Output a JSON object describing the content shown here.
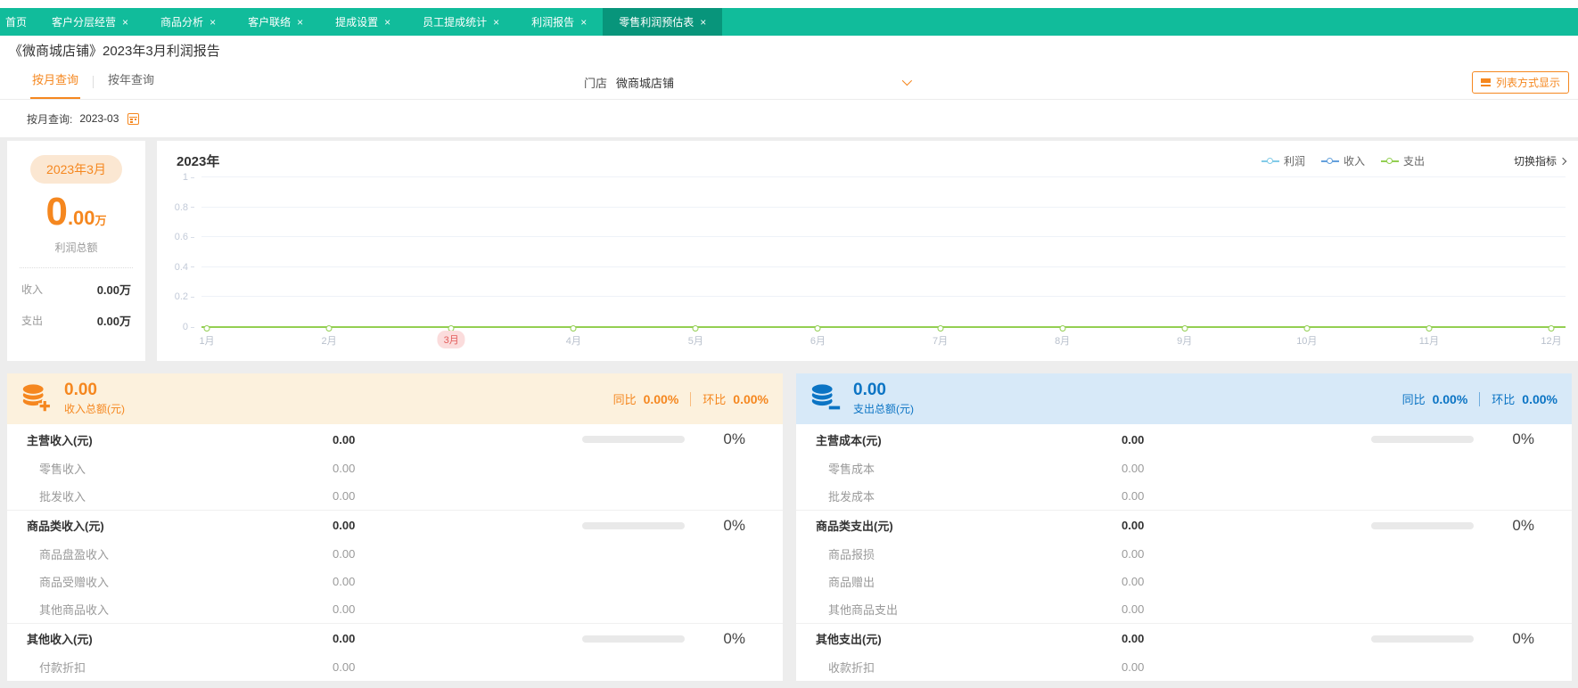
{
  "colors": {
    "teal": "#11bc9b",
    "teal_dark": "#08957b",
    "orange": "#f5871f",
    "blue": "#0b74c4",
    "green_line": "#93cf52",
    "red_month": "#e35d5b",
    "red_month_bg": "#fbdcdc",
    "income_band_bg": "#fcf1dd",
    "expense_band_bg": "#d7e9f8",
    "pill_bg": "#fbe7d2"
  },
  "nav": {
    "tabs": [
      {
        "label": "首页",
        "closable": false,
        "active": false
      },
      {
        "label": "客户分层经营",
        "closable": true,
        "active": false
      },
      {
        "label": "商品分析",
        "closable": true,
        "active": false
      },
      {
        "label": "客户联络",
        "closable": true,
        "active": false
      },
      {
        "label": "提成设置",
        "closable": true,
        "active": false
      },
      {
        "label": "员工提成统计",
        "closable": true,
        "active": false
      },
      {
        "label": "利润报告",
        "closable": true,
        "active": false
      },
      {
        "label": "零售利润预估表",
        "closable": true,
        "active": true
      }
    ]
  },
  "header": {
    "title": "《微商城店铺》2023年3月利润报告"
  },
  "filters": {
    "tabs": [
      {
        "label": "按月查询",
        "active": true
      },
      {
        "label": "按年查询",
        "active": false
      }
    ],
    "store_label": "门店",
    "store_value": "微商城店铺",
    "list_view_button": "列表方式显示",
    "date_label": "按月查询:",
    "date_value": "2023-03"
  },
  "summary_card": {
    "period": "2023年3月",
    "profit_int": "0",
    "profit_dec": ".00",
    "profit_unit": "万",
    "profit_label": "利润总额",
    "rows": [
      {
        "label": "收入",
        "value": "0.00万"
      },
      {
        "label": "支出",
        "value": "0.00万"
      }
    ]
  },
  "chart_data": {
    "type": "line",
    "title": "2023年",
    "x": [
      "1月",
      "2月",
      "3月",
      "4月",
      "5月",
      "6月",
      "7月",
      "8月",
      "9月",
      "10月",
      "11月",
      "12月"
    ],
    "series": [
      {
        "name": "利润",
        "color": "#82cbe8",
        "values": [
          0,
          0,
          0,
          0,
          0,
          0,
          0,
          0,
          0,
          0,
          0,
          0
        ]
      },
      {
        "name": "收入",
        "color": "#64a0dc",
        "values": [
          0,
          0,
          0,
          0,
          0,
          0,
          0,
          0,
          0,
          0,
          0,
          0
        ]
      },
      {
        "name": "支出",
        "color": "#93cf52",
        "values": [
          0,
          0,
          0,
          0,
          0,
          0,
          0,
          0,
          0,
          0,
          0,
          0
        ]
      }
    ],
    "ylim": [
      0,
      1
    ],
    "yticks": [
      0,
      0.2,
      0.4,
      0.6,
      0.8,
      1
    ],
    "grid": true,
    "legend_position": "top-right",
    "highlight_x": "3月",
    "switch_label": "切换指标"
  },
  "income_panel": {
    "total": "0.00",
    "total_label": "收入总额(元)",
    "yoy_label": "同比",
    "yoy_value": "0.00%",
    "mom_label": "环比",
    "mom_value": "0.00%",
    "rows": [
      {
        "label": "主营收入(元)",
        "value": "0.00",
        "percent": "0%",
        "type": "section"
      },
      {
        "label": "零售收入",
        "value": "0.00",
        "type": "sub"
      },
      {
        "label": "批发收入",
        "value": "0.00",
        "type": "sub"
      },
      {
        "label": "商品类收入(元)",
        "value": "0.00",
        "percent": "0%",
        "type": "section"
      },
      {
        "label": "商品盘盈收入",
        "value": "0.00",
        "type": "sub"
      },
      {
        "label": "商品受赠收入",
        "value": "0.00",
        "type": "sub"
      },
      {
        "label": "其他商品收入",
        "value": "0.00",
        "type": "sub"
      },
      {
        "label": "其他收入(元)",
        "value": "0.00",
        "percent": "0%",
        "type": "section"
      },
      {
        "label": "付款折扣",
        "value": "0.00",
        "type": "sub"
      }
    ]
  },
  "expense_panel": {
    "total": "0.00",
    "total_label": "支出总额(元)",
    "yoy_label": "同比",
    "yoy_value": "0.00%",
    "mom_label": "环比",
    "mom_value": "0.00%",
    "rows": [
      {
        "label": "主营成本(元)",
        "value": "0.00",
        "percent": "0%",
        "type": "section"
      },
      {
        "label": "零售成本",
        "value": "0.00",
        "type": "sub"
      },
      {
        "label": "批发成本",
        "value": "0.00",
        "type": "sub"
      },
      {
        "label": "商品类支出(元)",
        "value": "0.00",
        "percent": "0%",
        "type": "section"
      },
      {
        "label": "商品报损",
        "value": "0.00",
        "type": "sub"
      },
      {
        "label": "商品赠出",
        "value": "0.00",
        "type": "sub"
      },
      {
        "label": "其他商品支出",
        "value": "0.00",
        "type": "sub"
      },
      {
        "label": "其他支出(元)",
        "value": "0.00",
        "percent": "0%",
        "type": "section"
      },
      {
        "label": "收款折扣",
        "value": "0.00",
        "type": "sub"
      }
    ]
  }
}
